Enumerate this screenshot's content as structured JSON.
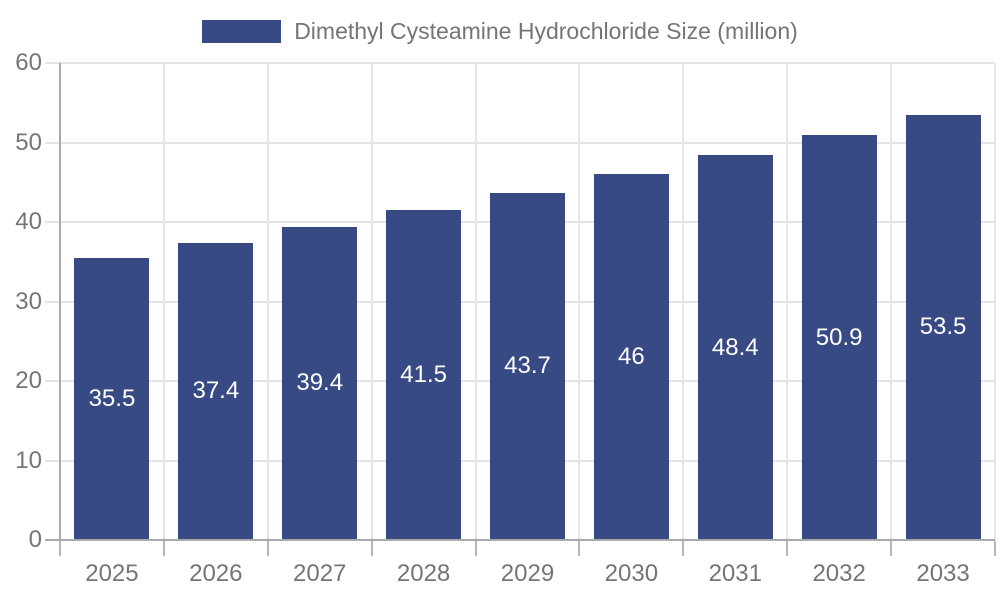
{
  "legend": {
    "label": "Dimethyl Cysteamine Hydrochloride Size (million)"
  },
  "chart_data": {
    "type": "bar",
    "title": "Dimethyl Cysteamine Hydrochloride Size (million)",
    "categories": [
      "2025",
      "2026",
      "2027",
      "2028",
      "2029",
      "2030",
      "2031",
      "2032",
      "2033"
    ],
    "values": [
      35.5,
      37.4,
      39.4,
      41.5,
      43.7,
      46,
      48.4,
      50.9,
      53.5
    ],
    "value_labels": [
      "35.5",
      "37.4",
      "39.4",
      "41.5",
      "43.7",
      "46",
      "48.4",
      "50.9",
      "53.5"
    ],
    "xlabel": "",
    "ylabel": "",
    "ylim": [
      0,
      60
    ],
    "y_ticks": [
      0,
      10,
      20,
      30,
      40,
      50,
      60
    ],
    "grid": "horizontal and vertical light gray gridlines",
    "legend_position": "top-center",
    "value_label_position": "center of bar"
  },
  "colors": {
    "bar": "#374a83",
    "value_label": "#ffffff",
    "axis_text": "#757575",
    "grid_line": "#e5e5e5",
    "axis_line": "#a9a9a9",
    "background": "#ffffff"
  }
}
